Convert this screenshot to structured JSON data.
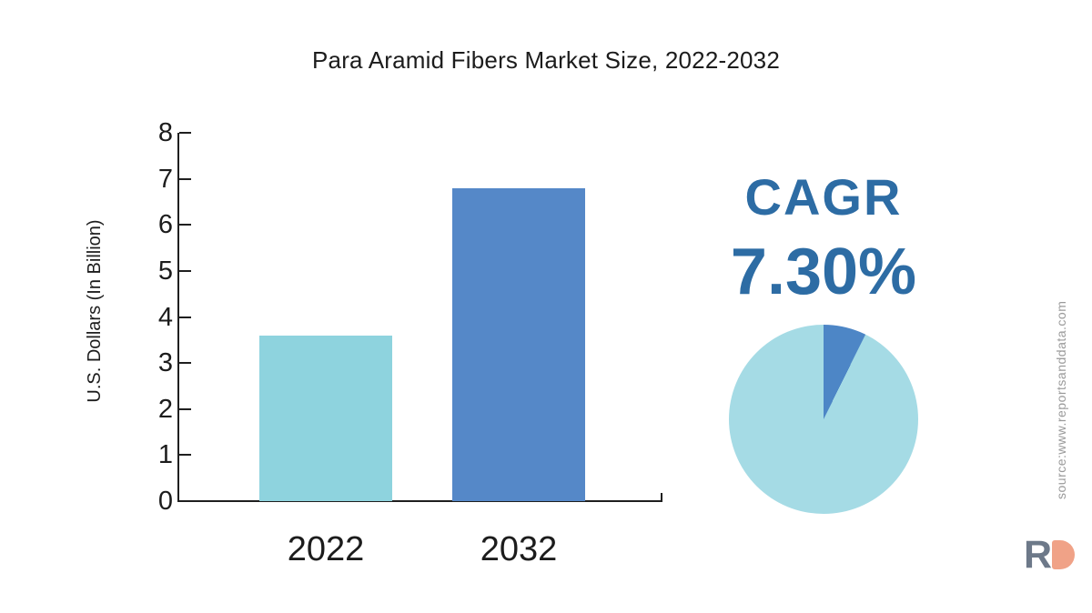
{
  "chart_data": {
    "type": "bar",
    "title": "Para Aramid Fibers Market Size, 2022-2032",
    "categories": [
      "2022",
      "2032"
    ],
    "values": [
      3.6,
      6.8
    ],
    "xlabel": "",
    "ylabel": "U.S. Dollars (In Billion)",
    "ylim": [
      0,
      8
    ],
    "yticks": [
      0,
      1,
      2,
      3,
      4,
      5,
      6,
      7,
      8
    ],
    "bar_colors": [
      "#8ed3de",
      "#5588c8"
    ],
    "grid": false,
    "legend": false
  },
  "cagr": {
    "label": "CAGR",
    "value": "7.30%",
    "color": "#2d6ca4"
  },
  "pie_chart": {
    "type": "pie",
    "slices": [
      {
        "name": "cagr-growth-slice",
        "value": 7.3,
        "color": "#4d86c6"
      },
      {
        "name": "remainder-slice",
        "value": 92.7,
        "color": "#a5dbe5"
      }
    ],
    "start_angle_deg": 0
  },
  "source": {
    "text": "source:www.reportsanddata.com"
  },
  "logo": {
    "letter": "R",
    "letter_color": "#6d7989",
    "d_shape_color": "#f0a287"
  }
}
